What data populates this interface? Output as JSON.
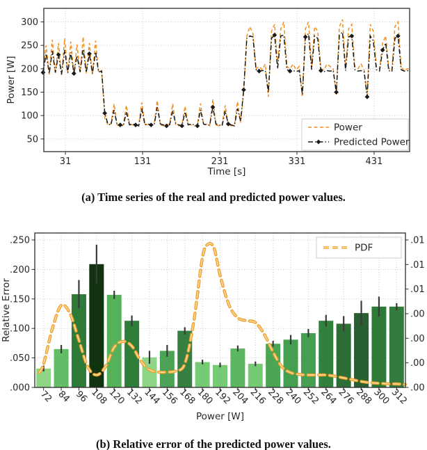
{
  "page": {
    "background": "#ffffff"
  },
  "figure_a": {
    "caption": "(a) Time series of the real and predicted power values."
  },
  "figure_b": {
    "caption": "(b) Relative error of the predicted power values."
  },
  "colors": {
    "power_line": "#f28e1c",
    "predicted_line": "#1a1a1a",
    "pdf_line": "#f0a231",
    "pdf_core": "#ffe2a8",
    "grid": "#c9c9c9",
    "spine": "#2b2b2b",
    "text": "#262626",
    "errorbar": "#3a3a3a",
    "legend_border": "#cccccc"
  },
  "chart_data": [
    {
      "type": "line",
      "title": "",
      "xlabel": "Time [s]",
      "ylabel": "Power [W]",
      "xlim": [
        3,
        477
      ],
      "ylim": [
        23,
        329
      ],
      "xticks": [
        31,
        131,
        231,
        331,
        431
      ],
      "yticks": [
        50,
        100,
        150,
        200,
        250,
        300
      ],
      "grid": true,
      "legend_position": "lower right",
      "x": [
        2,
        6,
        10,
        14,
        18,
        22,
        26,
        30,
        34,
        38,
        42,
        46,
        50,
        54,
        58,
        62,
        66,
        70,
        74,
        78,
        82,
        86,
        90,
        94,
        98,
        102,
        106,
        110,
        114,
        118,
        122,
        126,
        130,
        134,
        138,
        142,
        146,
        150,
        154,
        158,
        162,
        166,
        170,
        174,
        178,
        182,
        186,
        190,
        194,
        198,
        202,
        206,
        210,
        214,
        218,
        222,
        226,
        230,
        234,
        238,
        242,
        246,
        250,
        254,
        258,
        262,
        266,
        270,
        274,
        278,
        282,
        286,
        290,
        294,
        298,
        302,
        306,
        310,
        314,
        318,
        322,
        326,
        330,
        334,
        338,
        342,
        346,
        350,
        354,
        358,
        362,
        366,
        370,
        374,
        378,
        382,
        386,
        390,
        394,
        398,
        402,
        406,
        410,
        414,
        418,
        422,
        426,
        430,
        434,
        438,
        442,
        446,
        450,
        454,
        458,
        462,
        466,
        470,
        474,
        478
      ],
      "series": [
        {
          "name": "Power",
          "color": "#f28e1c",
          "style": "dashed",
          "markers": false,
          "values": [
            195,
            250,
            188,
            262,
            190,
            255,
            185,
            265,
            190,
            258,
            188,
            252,
            192,
            268,
            190,
            255,
            188,
            260,
            192,
            196,
            95,
            80,
            82,
            125,
            80,
            78,
            80,
            122,
            82,
            80,
            78,
            80,
            128,
            82,
            80,
            78,
            82,
            132,
            80,
            78,
            80,
            82,
            125,
            80,
            78,
            80,
            120,
            82,
            80,
            78,
            80,
            126,
            80,
            82,
            78,
            135,
            80,
            78,
            80,
            122,
            80,
            78,
            80,
            130,
            85,
            150,
            270,
            290,
            275,
            200,
            205,
            198,
            210,
            140,
            280,
            295,
            210,
            285,
            300,
            205,
            200,
            210,
            198,
            205,
            140,
            285,
            300,
            205,
            290,
            280,
            200,
            198,
            210,
            205,
            200,
            145,
            290,
            305,
            200,
            285,
            295,
            205,
            200,
            210,
            198,
            145,
            295,
            280,
            205,
            200,
            255,
            270,
            200,
            198,
            290,
            300,
            205,
            195,
            200,
            198
          ]
        },
        {
          "name": "Predicted Power",
          "color": "#1a1a1a",
          "style": "dashdot",
          "markers": true,
          "values": [
            192,
            232,
            190,
            238,
            192,
            230,
            188,
            240,
            192,
            235,
            190,
            228,
            193,
            242,
            192,
            232,
            190,
            236,
            193,
            195,
            105,
            82,
            80,
            112,
            80,
            80,
            78,
            108,
            80,
            82,
            80,
            78,
            115,
            80,
            82,
            80,
            80,
            118,
            82,
            80,
            78,
            80,
            110,
            82,
            80,
            78,
            108,
            80,
            82,
            80,
            78,
            112,
            82,
            80,
            80,
            118,
            82,
            80,
            78,
            110,
            82,
            80,
            78,
            115,
            88,
            155,
            265,
            270,
            268,
            198,
            195,
            196,
            196,
            150,
            265,
            272,
            200,
            270,
            272,
            198,
            195,
            196,
            194,
            196,
            145,
            268,
            275,
            198,
            270,
            265,
            196,
            194,
            196,
            195,
            196,
            150,
            272,
            278,
            196,
            268,
            270,
            198,
            195,
            196,
            194,
            140,
            270,
            260,
            198,
            195,
            240,
            255,
            196,
            194,
            265,
            270,
            198,
            195,
            196,
            195
          ]
        }
      ]
    },
    {
      "type": "bar",
      "title": "",
      "xlabel": "Power [W]",
      "ylabel": "Relative Error",
      "grid": true,
      "legend_position": "upper right",
      "ylim": [
        0,
        0.2618
      ],
      "categories": [
        72,
        84,
        96,
        108,
        120,
        132,
        144,
        156,
        168,
        180,
        192,
        204,
        216,
        228,
        240,
        252,
        264,
        276,
        288,
        300,
        312
      ],
      "values": [
        0.032,
        0.065,
        0.158,
        0.209,
        0.157,
        0.113,
        0.051,
        0.062,
        0.096,
        0.043,
        0.038,
        0.066,
        0.04,
        0.074,
        0.081,
        0.092,
        0.113,
        0.108,
        0.126,
        0.137,
        0.137
      ],
      "errors": [
        0.005,
        0.007,
        0.024,
        0.033,
        0.007,
        0.009,
        0.011,
        0.01,
        0.006,
        0.004,
        0.004,
        0.005,
        0.004,
        0.005,
        0.008,
        0.007,
        0.01,
        0.013,
        0.021,
        0.017,
        0.006
      ],
      "bar_colors": [
        "#8ed685",
        "#63bd66",
        "#2e7b39",
        "#11330f",
        "#56b25a",
        "#2f7d3a",
        "#8ed685",
        "#4ca355",
        "#357f41",
        "#77ca74",
        "#77ca74",
        "#5cb763",
        "#77ca74",
        "#4aa654",
        "#44a050",
        "#44a050",
        "#31813d",
        "#2c6e35",
        "#275f31",
        "#2e7b39",
        "#337a3e"
      ],
      "ytick_labels": [
        ".000",
        ".050",
        ".100",
        ".150",
        ".200",
        ".250"
      ],
      "ytick_values": [
        0,
        0.05,
        0.1,
        0.15,
        0.2,
        0.25
      ],
      "right_axis": {
        "tick_labels_top_to_bottom": [
          ".01",
          ".01",
          ".01",
          ".00",
          ".00",
          ".00",
          ".00"
        ]
      },
      "pdf": {
        "name": "PDF",
        "color": "#f0a231",
        "style": "dashed",
        "x": [
          69,
          72,
          78,
          84,
          90,
          96,
          102,
          108,
          114,
          120,
          126,
          132,
          138,
          144,
          150,
          156,
          162,
          168,
          174,
          180,
          184,
          188,
          192,
          198,
          204,
          210,
          216,
          222,
          228,
          234,
          240,
          246,
          252,
          258,
          264,
          270,
          276,
          282,
          288,
          294,
          300,
          306,
          312,
          318
        ],
        "values_left_axis_scale": [
          0.025,
          0.04,
          0.1,
          0.139,
          0.125,
          0.08,
          0.035,
          0.021,
          0.035,
          0.068,
          0.078,
          0.07,
          0.045,
          0.03,
          0.026,
          0.026,
          0.028,
          0.04,
          0.11,
          0.22,
          0.243,
          0.235,
          0.19,
          0.14,
          0.118,
          0.113,
          0.11,
          0.09,
          0.06,
          0.035,
          0.025,
          0.022,
          0.021,
          0.021,
          0.021,
          0.019,
          0.016,
          0.013,
          0.01,
          0.008,
          0.007,
          0.006,
          0.006,
          0.005
        ]
      }
    }
  ]
}
